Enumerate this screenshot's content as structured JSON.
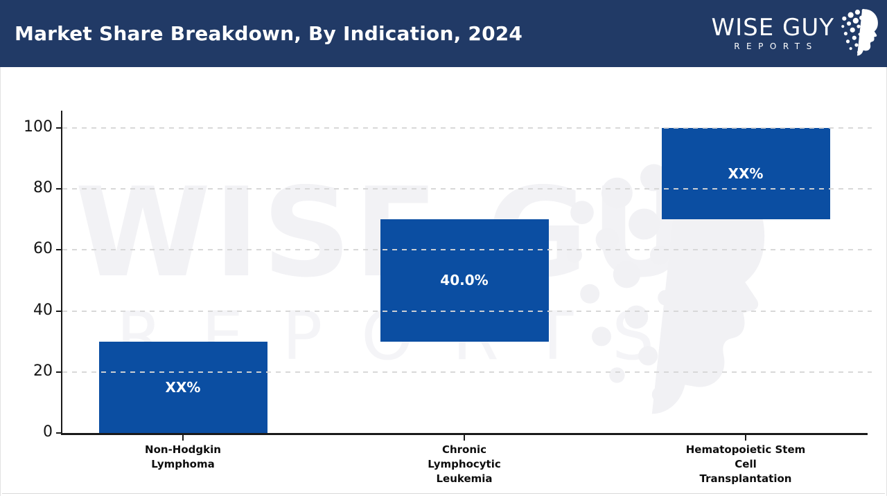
{
  "header": {
    "title": "Market Share Breakdown, By Indication, 2024",
    "logo_line1": "WISE GUY",
    "logo_line2": "REPORTS",
    "background": "#213a66"
  },
  "watermark": {
    "line1": "WISE GUY",
    "line2": "REPORTS"
  },
  "chart_data": {
    "type": "bar",
    "variant": "floating-range-bars",
    "title": "Market Share Breakdown, By Indication, 2024",
    "categories": [
      "Non-Hodgkin Lymphoma",
      "Chronic Lymphocytic Leukemia",
      "Hematopoietic Stem Cell Transplantation"
    ],
    "category_label_lines": [
      [
        "Non-Hodgkin",
        "Lymphoma"
      ],
      [
        "Chronic",
        "Lymphocytic",
        "Leukemia"
      ],
      [
        "Hematopoietic Stem",
        "Cell",
        "Transplantation"
      ]
    ],
    "bars": [
      {
        "start": 0,
        "end": 30,
        "label": "XX%"
      },
      {
        "start": 30,
        "end": 70,
        "label": "40.0%"
      },
      {
        "start": 70,
        "end": 100,
        "label": "XX%"
      }
    ],
    "ylim": [
      0,
      100
    ],
    "yticks": [
      0,
      20,
      40,
      60,
      80,
      100
    ],
    "xlabel": "",
    "ylabel": "",
    "grid": "horizontal-dashed",
    "legend": "none",
    "bar_color": "#0b4ea2",
    "bar_label_color": "#ffffff",
    "axis_color": "#1a1a1a",
    "gridline_color": "#d6d6d6"
  }
}
